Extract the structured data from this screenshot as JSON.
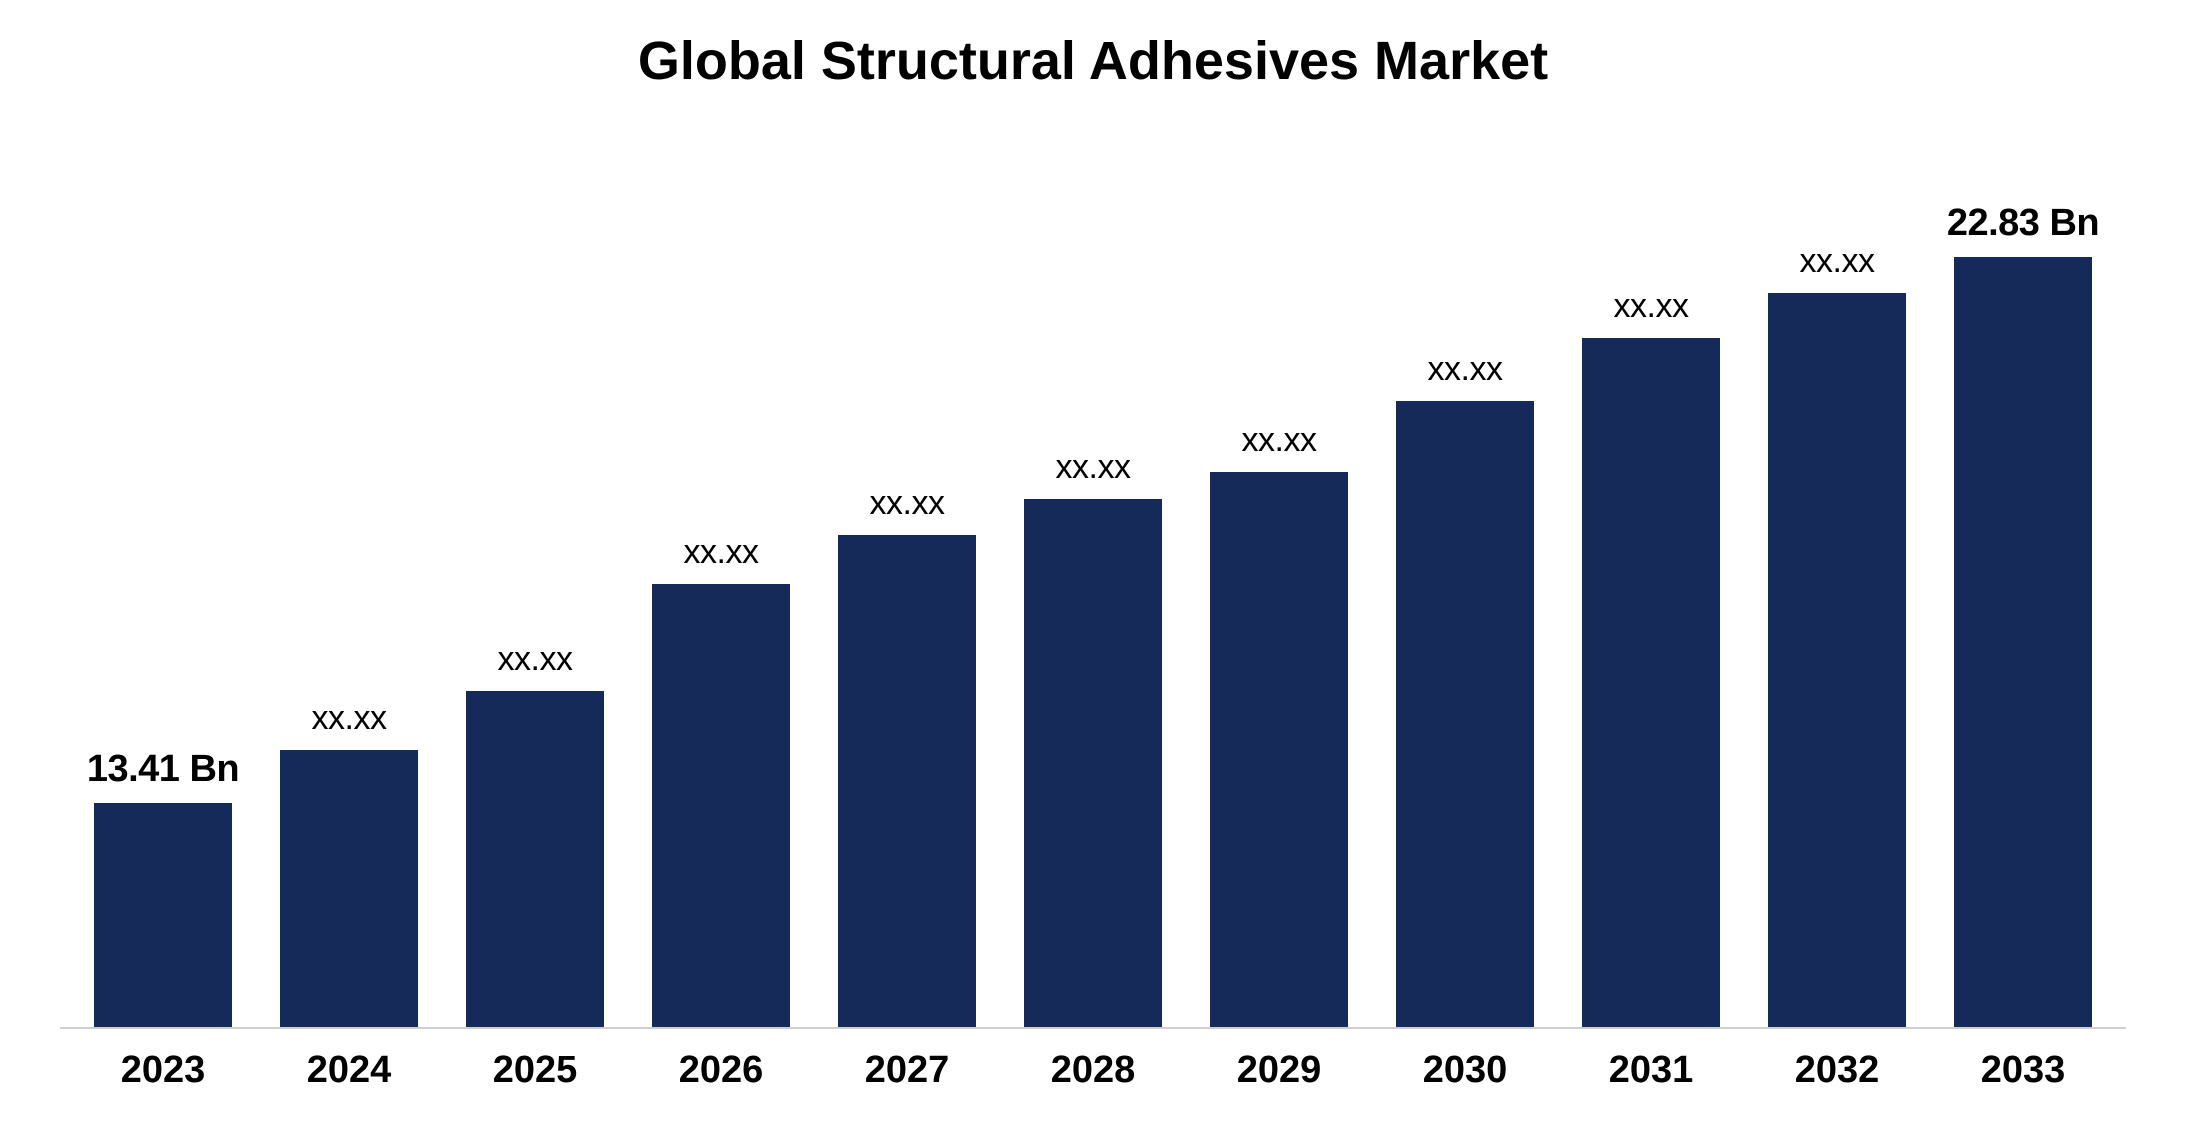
{
  "chart": {
    "type": "bar",
    "title": "Global Structural Adhesives Market",
    "title_fontsize": 54,
    "title_fontweight": "bold",
    "title_color": "#000000",
    "background_color": "#ffffff",
    "axis_line_color": "#d0d0d0",
    "bar_color": "#152a58",
    "bar_width": 0.75,
    "label_fontsize": 34,
    "label_fontsize_bold": 38,
    "xlabel_fontsize": 38,
    "xlabel_fontweight": "bold",
    "categories": [
      "2023",
      "2024",
      "2025",
      "2026",
      "2027",
      "2028",
      "2029",
      "2030",
      "2031",
      "2032",
      "2033"
    ],
    "values": [
      25,
      31,
      37.5,
      49.5,
      55,
      59,
      62,
      70,
      77,
      82,
      86
    ],
    "value_labels": [
      "13.41 Bn",
      "xx.xx",
      "xx.xx",
      "xx.xx",
      "xx.xx",
      "xx.xx",
      "xx.xx",
      "xx.xx",
      "xx.xx",
      "xx.xx",
      "22.83 Bn"
    ],
    "value_label_bold": [
      true,
      false,
      false,
      false,
      false,
      false,
      false,
      false,
      false,
      false,
      true
    ],
    "ylim": [
      0,
      100
    ]
  }
}
